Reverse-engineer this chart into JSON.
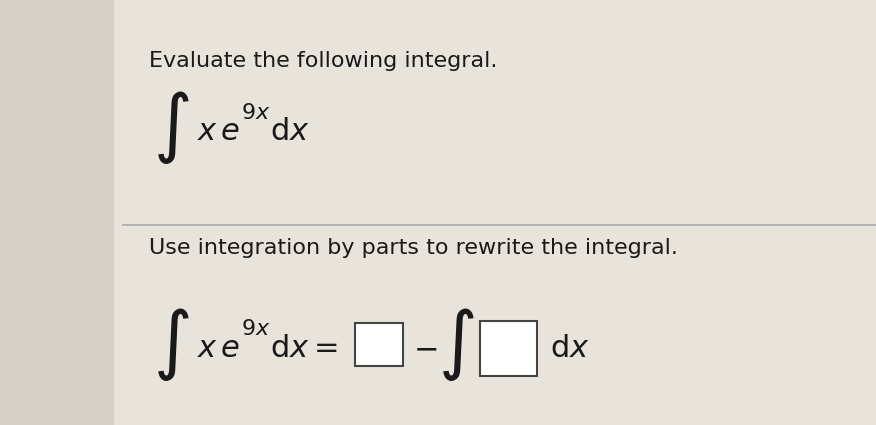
{
  "bg_color": "#d4d0c8",
  "panel_color": "#e8e4dc",
  "text_color": "#1a1a1a",
  "title1": "Evaluate the following integral.",
  "title2": "Use integration by parts to rewrite the integral.",
  "figsize": [
    8.76,
    4.25
  ],
  "dpi": 100
}
